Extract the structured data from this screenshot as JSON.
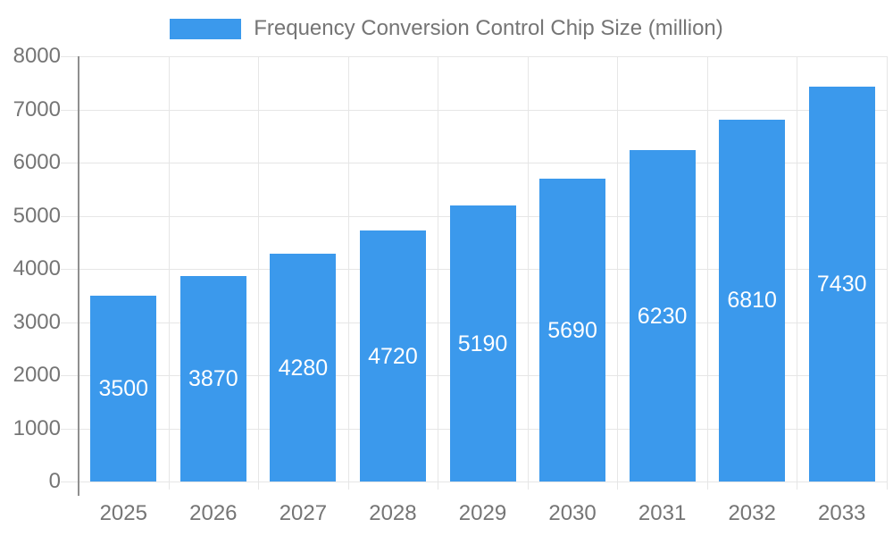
{
  "chart_data": {
    "type": "bar",
    "title": "Frequency Conversion Control Chip Size (million)",
    "categories": [
      "2025",
      "2026",
      "2027",
      "2028",
      "2029",
      "2030",
      "2031",
      "2032",
      "2033"
    ],
    "values": [
      3500,
      3870,
      4280,
      4720,
      5190,
      5690,
      6230,
      6810,
      7430
    ],
    "xlabel": "",
    "ylabel": "",
    "ylim": [
      0,
      8000
    ],
    "yticks": [
      0,
      1000,
      2000,
      3000,
      4000,
      5000,
      6000,
      7000,
      8000
    ],
    "grid": true,
    "legend_position": "top",
    "bar_color": "#3b99ec",
    "bar_label_color": "#ffffff",
    "axis_text_color": "#757575",
    "gridline_color": "#e6e6e6",
    "axis_line_color": "#8f8f8f",
    "background_color": "#ffffff"
  },
  "legend": {
    "series_label": "Frequency Conversion Control Chip Size (million)"
  }
}
